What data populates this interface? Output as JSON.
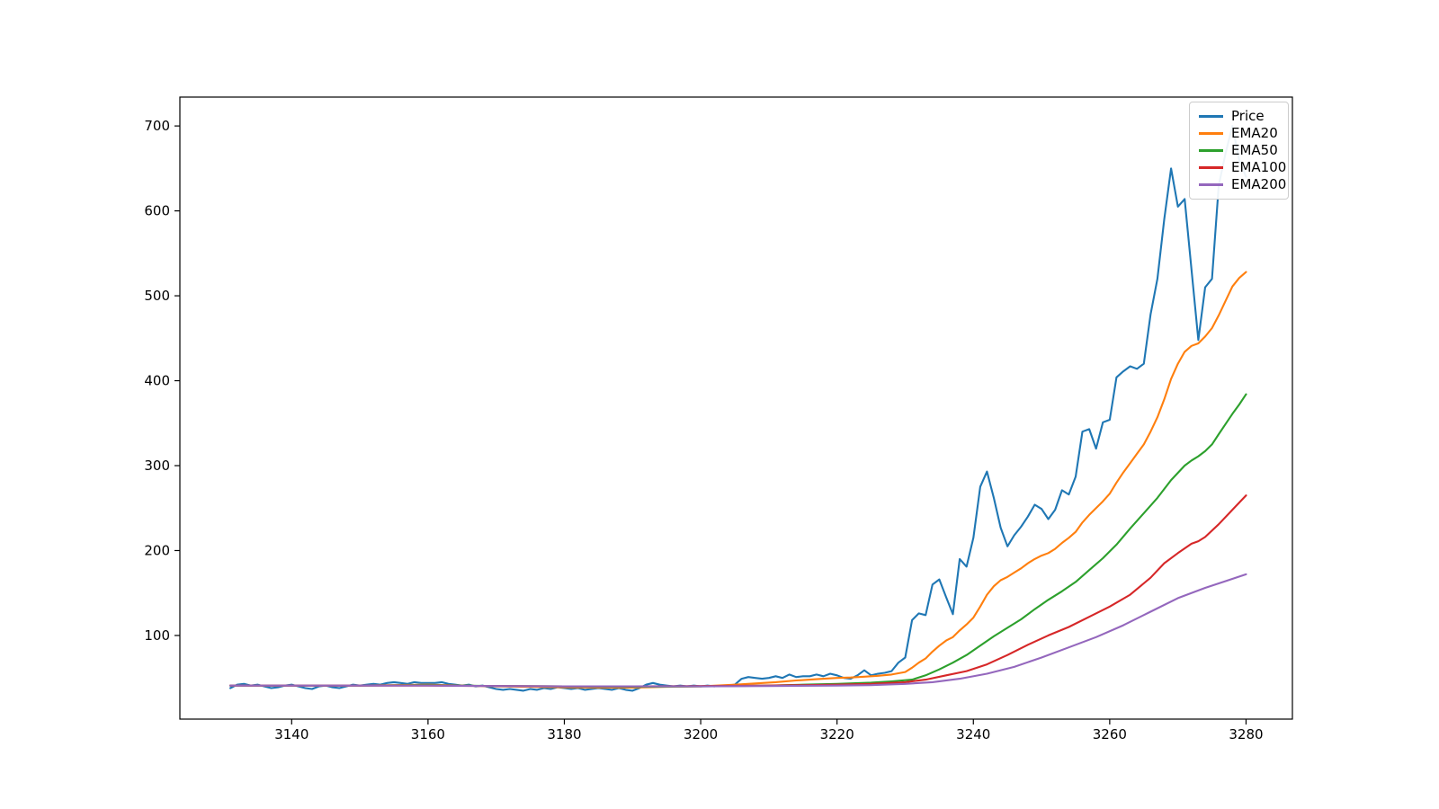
{
  "figure": {
    "background": "#ffffff"
  },
  "chart_data": {
    "type": "line",
    "title": "",
    "xlabel": "",
    "ylabel": "",
    "grid": false,
    "axis_color": "#000000",
    "xlim": [
      3123.6,
      3286.8
    ],
    "ylim": [
      1.5,
      734
    ],
    "xticks": [
      3140,
      3160,
      3180,
      3200,
      3220,
      3240,
      3260,
      3280
    ],
    "yticks": [
      100,
      200,
      300,
      400,
      500,
      600,
      700
    ],
    "legend": {
      "position": "upper-right",
      "border_color": "#cccccc",
      "background": "#ffffff"
    },
    "series": [
      {
        "name": "Price",
        "color": "#1f77b4",
        "points": [
          [
            3131,
            38
          ],
          [
            3132,
            42
          ],
          [
            3133,
            43
          ],
          [
            3134,
            41
          ],
          [
            3135,
            42
          ],
          [
            3136,
            40
          ],
          [
            3137,
            38
          ],
          [
            3138,
            39
          ],
          [
            3139,
            41
          ],
          [
            3140,
            42
          ],
          [
            3141,
            40
          ],
          [
            3142,
            38
          ],
          [
            3143,
            37
          ],
          [
            3144,
            40
          ],
          [
            3145,
            41
          ],
          [
            3146,
            39
          ],
          [
            3147,
            38
          ],
          [
            3148,
            40
          ],
          [
            3149,
            42
          ],
          [
            3150,
            41
          ],
          [
            3151,
            42
          ],
          [
            3152,
            43
          ],
          [
            3153,
            42
          ],
          [
            3154,
            44
          ],
          [
            3155,
            45
          ],
          [
            3156,
            44
          ],
          [
            3157,
            43
          ],
          [
            3158,
            45
          ],
          [
            3159,
            44
          ],
          [
            3160,
            44
          ],
          [
            3161,
            44
          ],
          [
            3162,
            45
          ],
          [
            3163,
            43
          ],
          [
            3164,
            42
          ],
          [
            3165,
            41
          ],
          [
            3166,
            42
          ],
          [
            3167,
            40
          ],
          [
            3168,
            41
          ],
          [
            3169,
            39
          ],
          [
            3170,
            37
          ],
          [
            3171,
            36
          ],
          [
            3172,
            37
          ],
          [
            3173,
            36
          ],
          [
            3174,
            35
          ],
          [
            3175,
            37
          ],
          [
            3176,
            36
          ],
          [
            3177,
            38
          ],
          [
            3178,
            37
          ],
          [
            3179,
            39
          ],
          [
            3180,
            38
          ],
          [
            3181,
            37
          ],
          [
            3182,
            38
          ],
          [
            3183,
            36
          ],
          [
            3184,
            37
          ],
          [
            3185,
            38
          ],
          [
            3186,
            37
          ],
          [
            3187,
            36
          ],
          [
            3188,
            38
          ],
          [
            3189,
            36
          ],
          [
            3190,
            35
          ],
          [
            3191,
            38
          ],
          [
            3192,
            42
          ],
          [
            3193,
            44
          ],
          [
            3194,
            42
          ],
          [
            3195,
            41
          ],
          [
            3196,
            40
          ],
          [
            3197,
            41
          ],
          [
            3198,
            40
          ],
          [
            3199,
            41
          ],
          [
            3200,
            40
          ],
          [
            3201,
            41
          ],
          [
            3202,
            40
          ],
          [
            3203,
            41
          ],
          [
            3204,
            41
          ],
          [
            3205,
            42
          ],
          [
            3206,
            49
          ],
          [
            3207,
            51
          ],
          [
            3208,
            50
          ],
          [
            3209,
            49
          ],
          [
            3210,
            50
          ],
          [
            3211,
            52
          ],
          [
            3212,
            50
          ],
          [
            3213,
            54
          ],
          [
            3214,
            51
          ],
          [
            3215,
            52
          ],
          [
            3216,
            52
          ],
          [
            3217,
            54
          ],
          [
            3218,
            52
          ],
          [
            3219,
            55
          ],
          [
            3220,
            53
          ],
          [
            3221,
            50
          ],
          [
            3222,
            49
          ],
          [
            3223,
            53
          ],
          [
            3224,
            59
          ],
          [
            3225,
            53
          ],
          [
            3226,
            55
          ],
          [
            3227,
            56
          ],
          [
            3228,
            58
          ],
          [
            3229,
            68
          ],
          [
            3230,
            74
          ],
          [
            3231,
            118
          ],
          [
            3232,
            126
          ],
          [
            3233,
            124
          ],
          [
            3234,
            160
          ],
          [
            3235,
            166
          ],
          [
            3236,
            145
          ],
          [
            3237,
            125
          ],
          [
            3238,
            190
          ],
          [
            3239,
            181
          ],
          [
            3240,
            215
          ],
          [
            3241,
            275
          ],
          [
            3242,
            293
          ],
          [
            3243,
            262
          ],
          [
            3244,
            227
          ],
          [
            3245,
            205
          ],
          [
            3246,
            218
          ],
          [
            3247,
            228
          ],
          [
            3248,
            240
          ],
          [
            3249,
            254
          ],
          [
            3250,
            249
          ],
          [
            3251,
            237
          ],
          [
            3252,
            248
          ],
          [
            3253,
            271
          ],
          [
            3254,
            266
          ],
          [
            3255,
            287
          ],
          [
            3256,
            340
          ],
          [
            3257,
            343
          ],
          [
            3258,
            320
          ],
          [
            3259,
            351
          ],
          [
            3260,
            354
          ],
          [
            3261,
            404
          ],
          [
            3262,
            411
          ],
          [
            3263,
            417
          ],
          [
            3264,
            414
          ],
          [
            3265,
            420
          ],
          [
            3266,
            478
          ],
          [
            3267,
            520
          ],
          [
            3268,
            590
          ],
          [
            3269,
            650
          ],
          [
            3270,
            605
          ],
          [
            3271,
            614
          ],
          [
            3272,
            531
          ],
          [
            3273,
            448
          ],
          [
            3274,
            510
          ],
          [
            3275,
            520
          ],
          [
            3276,
            630
          ],
          [
            3277,
            668
          ],
          [
            3278,
            700
          ],
          [
            3279,
            660
          ],
          [
            3280,
            640
          ]
        ]
      },
      {
        "name": "EMA20",
        "color": "#ff7f0e",
        "points": [
          [
            3131,
            41
          ],
          [
            3140,
            41
          ],
          [
            3150,
            41
          ],
          [
            3160,
            42
          ],
          [
            3170,
            40
          ],
          [
            3180,
            39
          ],
          [
            3190,
            38.5
          ],
          [
            3195,
            39.5
          ],
          [
            3200,
            40
          ],
          [
            3205,
            42
          ],
          [
            3208,
            43.5
          ],
          [
            3211,
            45
          ],
          [
            3214,
            47
          ],
          [
            3217,
            48.5
          ],
          [
            3220,
            50
          ],
          [
            3222,
            50.5
          ],
          [
            3224,
            51.5
          ],
          [
            3226,
            52.5
          ],
          [
            3228,
            54
          ],
          [
            3230,
            57
          ],
          [
            3231,
            62
          ],
          [
            3232,
            68
          ],
          [
            3233,
            73
          ],
          [
            3234,
            81
          ],
          [
            3235,
            88
          ],
          [
            3236,
            94
          ],
          [
            3237,
            98
          ],
          [
            3238,
            106
          ],
          [
            3239,
            113
          ],
          [
            3240,
            121
          ],
          [
            3241,
            134
          ],
          [
            3242,
            148
          ],
          [
            3243,
            158
          ],
          [
            3244,
            165
          ],
          [
            3245,
            169
          ],
          [
            3246,
            174
          ],
          [
            3247,
            179
          ],
          [
            3248,
            185
          ],
          [
            3249,
            190
          ],
          [
            3250,
            194
          ],
          [
            3251,
            197
          ],
          [
            3252,
            202
          ],
          [
            3253,
            209
          ],
          [
            3254,
            215
          ],
          [
            3255,
            222
          ],
          [
            3256,
            233
          ],
          [
            3257,
            242
          ],
          [
            3258,
            250
          ],
          [
            3259,
            258
          ],
          [
            3260,
            267
          ],
          [
            3261,
            280
          ],
          [
            3262,
            292
          ],
          [
            3263,
            303
          ],
          [
            3264,
            314
          ],
          [
            3265,
            325
          ],
          [
            3266,
            340
          ],
          [
            3267,
            357
          ],
          [
            3268,
            378
          ],
          [
            3269,
            402
          ],
          [
            3270,
            420
          ],
          [
            3271,
            434
          ],
          [
            3272,
            441
          ],
          [
            3273,
            444
          ],
          [
            3274,
            452
          ],
          [
            3275,
            462
          ],
          [
            3276,
            477
          ],
          [
            3277,
            494
          ],
          [
            3278,
            511
          ],
          [
            3279,
            521
          ],
          [
            3280,
            528
          ]
        ]
      },
      {
        "name": "EMA50",
        "color": "#2ca02c",
        "points": [
          [
            3131,
            41
          ],
          [
            3140,
            41
          ],
          [
            3150,
            41
          ],
          [
            3160,
            41.5
          ],
          [
            3170,
            40.5
          ],
          [
            3180,
            40
          ],
          [
            3190,
            39.5
          ],
          [
            3200,
            40
          ],
          [
            3205,
            40.5
          ],
          [
            3210,
            41
          ],
          [
            3215,
            42
          ],
          [
            3220,
            43
          ],
          [
            3225,
            44.5
          ],
          [
            3228,
            46
          ],
          [
            3231,
            48
          ],
          [
            3233,
            53
          ],
          [
            3235,
            60
          ],
          [
            3237,
            68
          ],
          [
            3239,
            77
          ],
          [
            3241,
            88
          ],
          [
            3243,
            99
          ],
          [
            3245,
            109
          ],
          [
            3247,
            119
          ],
          [
            3249,
            131
          ],
          [
            3251,
            142
          ],
          [
            3253,
            152
          ],
          [
            3255,
            163
          ],
          [
            3257,
            177
          ],
          [
            3259,
            191
          ],
          [
            3261,
            207
          ],
          [
            3263,
            226
          ],
          [
            3265,
            244
          ],
          [
            3267,
            262
          ],
          [
            3269,
            283
          ],
          [
            3271,
            300
          ],
          [
            3272,
            306
          ],
          [
            3273,
            311
          ],
          [
            3274,
            317
          ],
          [
            3275,
            325
          ],
          [
            3276,
            337
          ],
          [
            3277,
            349
          ],
          [
            3278,
            361
          ],
          [
            3279,
            372
          ],
          [
            3280,
            384
          ]
        ]
      },
      {
        "name": "EMA100",
        "color": "#d62728",
        "points": [
          [
            3131,
            41
          ],
          [
            3140,
            41
          ],
          [
            3150,
            41
          ],
          [
            3160,
            41
          ],
          [
            3170,
            40.5
          ],
          [
            3180,
            40
          ],
          [
            3190,
            40
          ],
          [
            3200,
            40.5
          ],
          [
            3210,
            41
          ],
          [
            3220,
            42
          ],
          [
            3225,
            43
          ],
          [
            3230,
            45
          ],
          [
            3233,
            48
          ],
          [
            3236,
            53
          ],
          [
            3239,
            58
          ],
          [
            3242,
            66
          ],
          [
            3245,
            77
          ],
          [
            3248,
            89
          ],
          [
            3251,
            100
          ],
          [
            3254,
            110
          ],
          [
            3257,
            122
          ],
          [
            3260,
            134
          ],
          [
            3263,
            148
          ],
          [
            3266,
            168
          ],
          [
            3268,
            185
          ],
          [
            3270,
            197
          ],
          [
            3272,
            208
          ],
          [
            3273,
            211
          ],
          [
            3274,
            216
          ],
          [
            3276,
            231
          ],
          [
            3278,
            248
          ],
          [
            3280,
            265
          ]
        ]
      },
      {
        "name": "EMA200",
        "color": "#9467bd",
        "points": [
          [
            3131,
            41
          ],
          [
            3140,
            41
          ],
          [
            3150,
            41
          ],
          [
            3160,
            41
          ],
          [
            3170,
            40.5
          ],
          [
            3180,
            40
          ],
          [
            3190,
            40
          ],
          [
            3200,
            40
          ],
          [
            3210,
            40.5
          ],
          [
            3220,
            41
          ],
          [
            3225,
            41.5
          ],
          [
            3230,
            43
          ],
          [
            3234,
            45
          ],
          [
            3238,
            49
          ],
          [
            3242,
            55
          ],
          [
            3246,
            63
          ],
          [
            3250,
            74
          ],
          [
            3254,
            86
          ],
          [
            3258,
            98
          ],
          [
            3262,
            112
          ],
          [
            3266,
            128
          ],
          [
            3270,
            144
          ],
          [
            3274,
            156
          ],
          [
            3277,
            164
          ],
          [
            3280,
            172
          ]
        ]
      }
    ]
  }
}
